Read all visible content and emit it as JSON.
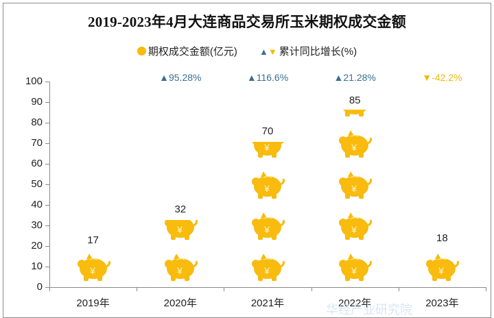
{
  "title": "2019-2023年4月大连商品交易所玉米期权成交金额",
  "legend": {
    "series1": "期权成交金额(亿元)",
    "series2": "累计同比增长(%)",
    "up_symbol": "▲",
    "down_symbol": "▼"
  },
  "colors": {
    "bar": "#f8bb0e",
    "up": "#3a6f8f",
    "down": "#f6b800",
    "axis": "#888888"
  },
  "yaxis": {
    "ticks": [
      "0",
      "10",
      "20",
      "30",
      "40",
      "50",
      "60",
      "70",
      "80",
      "90",
      "100"
    ]
  },
  "xaxis": {
    "labels": [
      "2019年",
      "2020年",
      "2021年",
      "2022年",
      "2023年"
    ]
  },
  "value_labels": [
    "17",
    "32",
    "70",
    "85",
    "18"
  ],
  "growth_labels": [
    "",
    "▲95.28%",
    "▲116.6%",
    "▲21.28%",
    "▼-42.2%"
  ],
  "watermark": "华经产业研究院",
  "chart_data": {
    "type": "bar",
    "subtype": "pictograph",
    "title": "2019-2023年4月大连商品交易所玉米期权成交金额",
    "categories": [
      "2019年",
      "2020年",
      "2021年",
      "2022年",
      "2023年"
    ],
    "series": [
      {
        "name": "期权成交金额(亿元)",
        "values": [
          17,
          32,
          70,
          85,
          18
        ],
        "icon": "piggy-bank",
        "icon_unit": 20
      },
      {
        "name": "累计同比增长(%)",
        "values": [
          null,
          95.28,
          116.6,
          21.28,
          -42.2
        ]
      }
    ],
    "xlabel": "",
    "ylabel": "",
    "ylim": [
      0,
      100
    ],
    "yticks": [
      0,
      10,
      20,
      30,
      40,
      50,
      60,
      70,
      80,
      90,
      100
    ],
    "grid": false,
    "legend_position": "top"
  }
}
